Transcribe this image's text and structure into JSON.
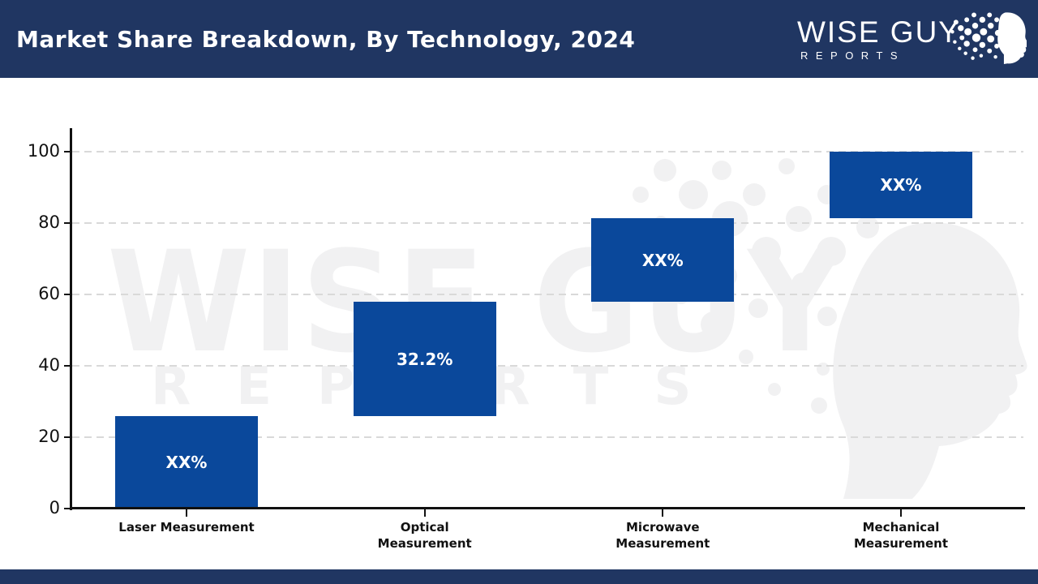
{
  "header": {
    "title": "Market Share Breakdown, By Technology, 2024",
    "bg_color": "#203662",
    "logo": {
      "name": "WISE GUY",
      "sub": "REPORTS"
    }
  },
  "watermark": {
    "line1": "WISE GUY",
    "line2": "REPORTS"
  },
  "chart_data": {
    "type": "bar",
    "subtype": "waterfall",
    "title": "Market Share Breakdown, By Technology, 2024",
    "unit": "%",
    "categories": [
      "Laser Measurement",
      "Optical Measurement",
      "Microwave Measurement",
      "Mechanical Measurement"
    ],
    "category_label_lines": [
      [
        "Laser Measurement"
      ],
      [
        "Optical",
        "Measurement"
      ],
      [
        "Microwave",
        "Measurement"
      ],
      [
        "Mechanical",
        "Measurement"
      ]
    ],
    "segments": [
      {
        "category": "Laser Measurement",
        "start": 0,
        "end": 25.8,
        "label": "XX%"
      },
      {
        "category": "Optical Measurement",
        "start": 25.8,
        "end": 58.0,
        "label": "32.2%",
        "value": 32.2
      },
      {
        "category": "Microwave Measurement",
        "start": 58.0,
        "end": 81.3,
        "label": "XX%"
      },
      {
        "category": "Mechanical Measurement",
        "start": 81.3,
        "end": 100,
        "label": "XX%"
      }
    ],
    "y_ticks": [
      0,
      20,
      40,
      60,
      80,
      100
    ],
    "ylim": [
      0,
      105
    ],
    "grid": {
      "horizontal": true,
      "style": "dashed"
    },
    "legend": null,
    "colors": {
      "bar": "#0A489B",
      "bar_label_text": "#ffffff",
      "axis": "#111111",
      "grid": "#d9d9d9",
      "header_bg": "#203662",
      "watermark": "#f1f1f2"
    }
  },
  "footer": {
    "bg_color": "#203662"
  }
}
